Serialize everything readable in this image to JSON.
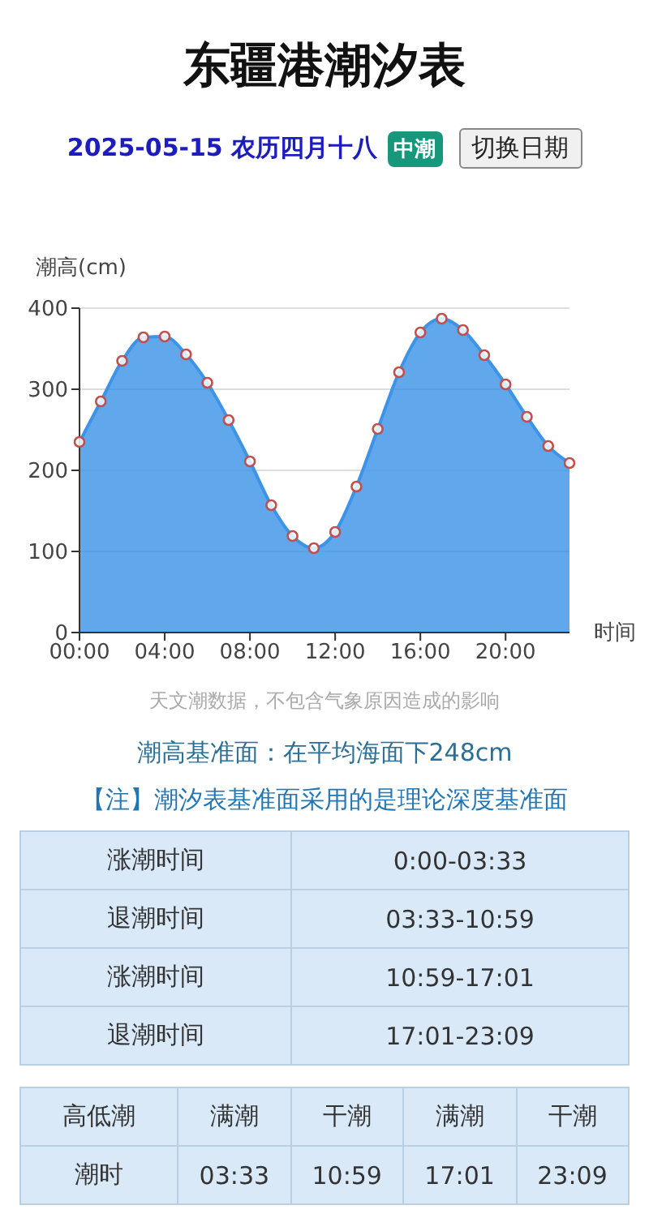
{
  "chart_data": {
    "type": "area",
    "title": "东疆港潮汐表",
    "subtitle": "2025-05-15 农历四月十八",
    "xlabel": "时间",
    "ylabel": "潮高(cm)",
    "annotations": [
      "中潮",
      "切换日期",
      "天文潮数据，不包含气象原因造成的影响",
      "潮高基准面：在平均海面下248cm",
      "【注】潮汐表基准面采用的是理论深度基准面",
      "涨潮时间",
      "0:00-03:33",
      "退潮时间",
      "03:33-10:59",
      "涨潮时间",
      "10:59-17:01",
      "退潮时间",
      "17:01-23:09",
      "高低潮",
      "满潮",
      "干潮",
      "满潮",
      "干潮",
      "潮时",
      "03:33",
      "10:59",
      "17:01",
      "23:09"
    ],
    "x": [
      0,
      1,
      2,
      3,
      4,
      5,
      6,
      7,
      8,
      9,
      10,
      11,
      12,
      13,
      14,
      15,
      16,
      17,
      18,
      19,
      20,
      21,
      22,
      23
    ],
    "series": [
      {
        "color": "#3d94e6",
        "values": [
          235,
          285,
          335,
          364,
          365,
          343,
          308,
          262,
          211,
          157,
          119,
          104,
          124,
          180,
          251,
          321,
          370,
          387,
          373,
          342,
          306,
          266,
          230,
          209
        ]
      }
    ],
    "xlim": [
      0,
      23
    ],
    "xticks": [
      {
        "value": 0,
        "label": "00:00"
      },
      {
        "value": 4,
        "label": "04:00"
      },
      {
        "value": 8,
        "label": "08:00"
      },
      {
        "value": 12,
        "label": "12:00"
      },
      {
        "value": 16,
        "label": "16:00"
      },
      {
        "value": 20,
        "label": "20:00"
      }
    ],
    "ylim": [
      0,
      400
    ],
    "yticks": [
      0,
      100,
      200,
      300,
      400
    ],
    "grid": "y",
    "marker": "circle"
  }
}
